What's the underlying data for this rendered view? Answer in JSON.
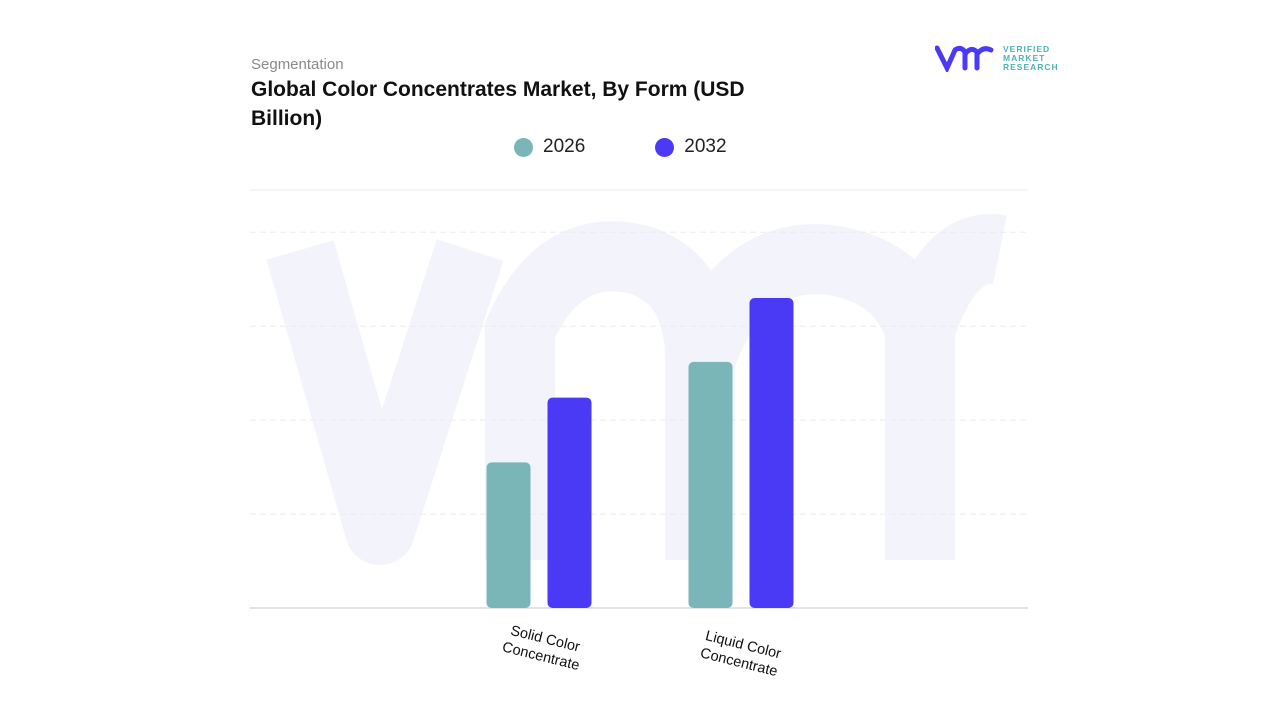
{
  "header": {
    "segment_label": "Segmentation",
    "title": "Global Color Concentrates Market, By Form (USD Billion)"
  },
  "logo": {
    "lines": [
      "VERIFIED",
      "MARKET",
      "RESEARCH"
    ],
    "mark": "vmr"
  },
  "colors": {
    "2026": "#7ab6b8",
    "2032": "#4a3af5",
    "watermark": "#f3f4fb"
  },
  "chart_data": {
    "type": "bar",
    "title": "Global Color Concentrates Market, By Form (USD Billion)",
    "categories": [
      "Solid Color Concentrate",
      "Liquid Color Concentrate"
    ],
    "series": [
      {
        "name": "2026",
        "values": [
          1.55,
          2.62
        ]
      },
      {
        "name": "2032",
        "values": [
          2.24,
          3.3
        ]
      }
    ],
    "ylim": [
      0,
      4.45
    ],
    "grid": true,
    "legend": "top"
  }
}
